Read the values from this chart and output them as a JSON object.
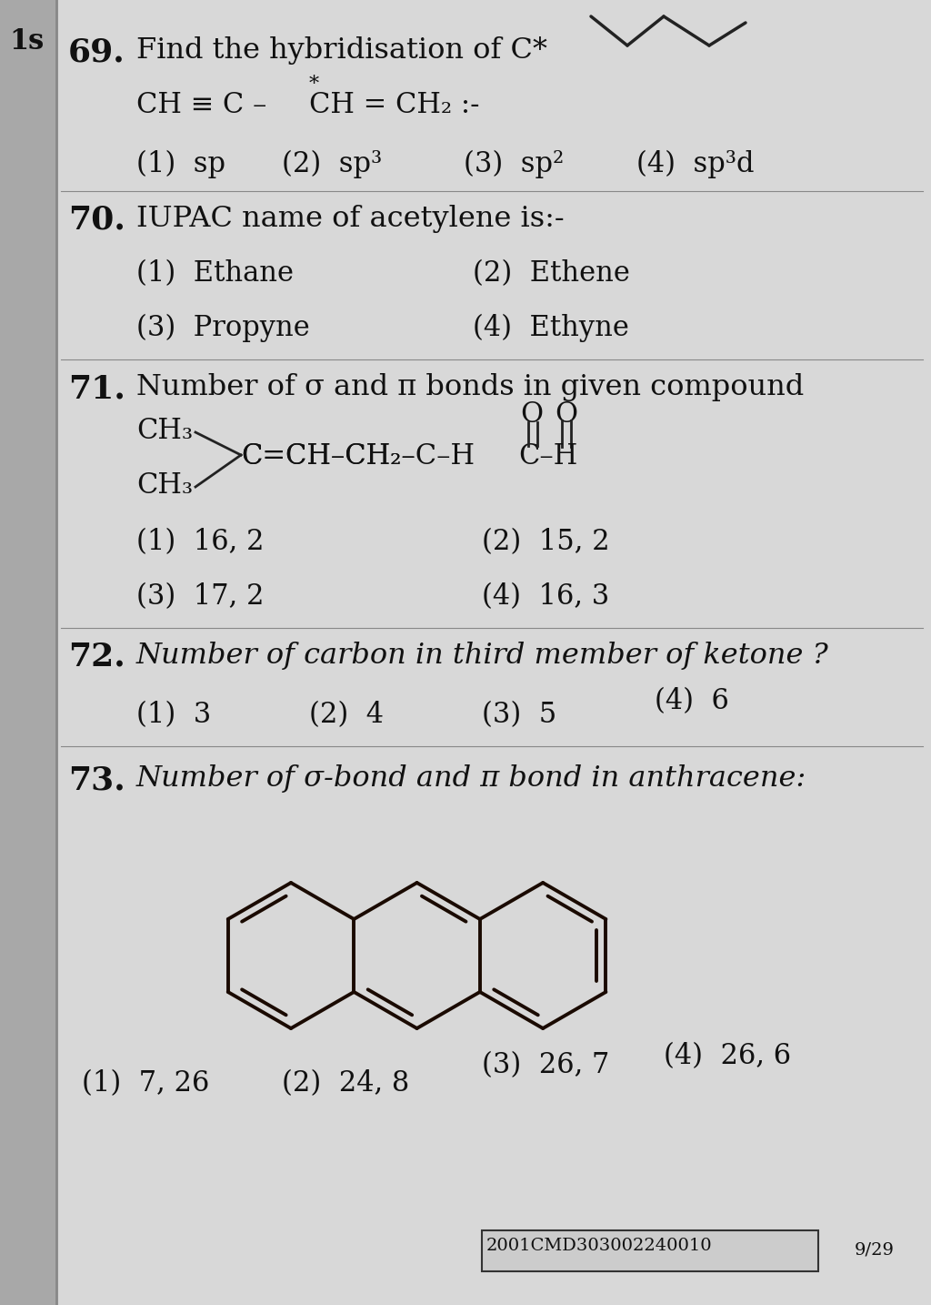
{
  "bg_color": "#c8c8c8",
  "content_bg": "#e0e0e0",
  "left_strip_color": "#a0a0a0",
  "text_color": "#111111",
  "q69_num": "69.",
  "q69_text": "Find the hybridisation of C*",
  "q69_opt1": "(1)  sp",
  "q69_opt2": "(2)  sp³",
  "q69_opt3": "(3)  sp²",
  "q69_opt4": "(4)  sp³d",
  "q70_num": "70.",
  "q70_text": "IUPAC name of acetylene is:-",
  "q70_opt1": "(1)  Ethane",
  "q70_opt2": "(2)  Ethene",
  "q70_opt3": "(3)  Propyne",
  "q70_opt4": "(4)  Ethyne",
  "q71_num": "71.",
  "q71_text": "Number of σ and π bonds in given compound",
  "q71_opt1": "(1)  16, 2",
  "q71_opt2": "(2)  15, 2",
  "q71_opt3": "(3)  17, 2",
  "q71_opt4": "(4)  16, 3",
  "q72_num": "72.",
  "q72_text": "Number of carbon in third member of ketone ?",
  "q72_opt1": "(1)  3",
  "q72_opt2": "(2)  4",
  "q72_opt3": "(3)  5",
  "q72_opt4": "(4)  6",
  "q73_num": "73.",
  "q73_text": "Number of σ-bond and π bond in anthracene:",
  "q73_opt1": "(1)  7, 26",
  "q73_opt2": "(2)  24, 8",
  "q73_opt3": "(3)  26, 7",
  "q73_opt4": "(4)  26, 6",
  "watermark": "2001CMD303002240010",
  "page_num": "9/29",
  "left_label": "1s"
}
